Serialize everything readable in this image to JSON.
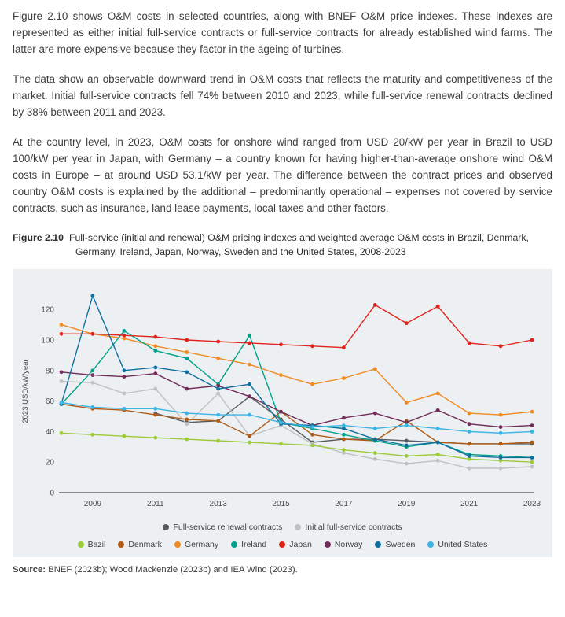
{
  "page": {
    "paragraphs": [
      "Figure 2.10 shows O&M costs in selected countries, along with BNEF O&M price indexes. These indexes are represented as either initial full-service contracts or full-service contracts for already established wind farms. The latter are more expensive because they factor in the ageing of turbines.",
      "The data show an observable downward trend in O&M costs that reflects the maturity and competitiveness of the market. Initial full-service contracts fell 74% between 2010 and 2023, while full-service renewal contracts declined by 38% between 2011 and 2023.",
      "At the country level, in 2023, O&M costs for onshore wind ranged from USD 20/kW per year in Brazil to USD 100/kW per year in Japan, with Germany – a country known for having higher-than-average onshore wind O&M costs in Europe – at around USD 53.1/kW per year. The difference between the contract prices and observed country O&M costs is explained by the additional – predominantly operational – expenses not covered by service contracts, such as insurance, land lease payments, local taxes and other factors."
    ],
    "figure_label": "Figure 2.10",
    "figure_caption": "Full-service (initial and renewal) O&M pricing indexes and weighted average O&M costs in Brazil, Denmark, Germany, Ireland, Japan, Norway, Sweden and the United States, 2008-2023",
    "source_label": "Source:",
    "source_text": "BNEF (2023b); Wood Mackenzie (2023b) and IEA Wind (2023)."
  },
  "chart_data": {
    "type": "line",
    "title": "",
    "xlabel": "",
    "ylabel": "2023 USD/kW/year",
    "x": [
      2008,
      2009,
      2010,
      2011,
      2012,
      2013,
      2014,
      2015,
      2016,
      2017,
      2018,
      2019,
      2020,
      2021,
      2022,
      2023
    ],
    "x_ticks": [
      2009,
      2011,
      2013,
      2015,
      2017,
      2019,
      2021,
      2023
    ],
    "y_ticks": [
      0,
      20,
      40,
      60,
      80,
      100,
      120
    ],
    "ylim": [
      0,
      133
    ],
    "grid": false,
    "legend_position": "bottom",
    "panel_bg": "#ecf0f3",
    "series": [
      {
        "name": "Full-service renewal contracts",
        "label": "Full-service renewal contracts",
        "color": "#595a5c",
        "legend_row": 1,
        "values": [
          null,
          null,
          null,
          52,
          46,
          47,
          63,
          48,
          33,
          35,
          35,
          34,
          33,
          32,
          32,
          32
        ]
      },
      {
        "name": "Initial full-service contracts",
        "label": "Initial full-service contracts",
        "color": "#bfc1c3",
        "legend_row": 1,
        "values": [
          73,
          72,
          65,
          68,
          45,
          65,
          37,
          44,
          32,
          26,
          22,
          19,
          21,
          16,
          16,
          17
        ]
      },
      {
        "name": "Brazil",
        "label": "Bazil",
        "color": "#9dca3b",
        "legend_row": 2,
        "values": [
          39,
          38,
          37,
          36,
          35,
          34,
          33,
          32,
          31,
          28,
          26,
          24,
          25,
          22,
          21,
          20
        ]
      },
      {
        "name": "Denmark",
        "label": "Denmark",
        "color": "#b05c17",
        "legend_row": 2,
        "values": [
          58,
          55,
          54,
          51,
          48,
          47,
          37,
          53,
          38,
          35,
          34,
          47,
          33,
          32,
          32,
          33
        ]
      },
      {
        "name": "Germany",
        "label": "Germany",
        "color": "#f18a21",
        "legend_row": 2,
        "values": [
          110,
          104,
          101,
          96,
          92,
          88,
          84,
          77,
          71,
          75,
          81,
          59,
          65,
          52,
          51,
          53
        ]
      },
      {
        "name": "Ireland",
        "label": "Ireland",
        "color": "#00a189",
        "legend_row": 2,
        "values": [
          58,
          80,
          106,
          93,
          88,
          71,
          103,
          46,
          42,
          38,
          34,
          30,
          33,
          25,
          24,
          23
        ]
      },
      {
        "name": "Japan",
        "label": "Japan",
        "color": "#e2231a",
        "legend_row": 2,
        "values": [
          104,
          104,
          103,
          102,
          100,
          99,
          98,
          97,
          96,
          95,
          123,
          111,
          122,
          98,
          96,
          100
        ]
      },
      {
        "name": "Norway",
        "label": "Norway",
        "color": "#722b58",
        "legend_row": 2,
        "values": [
          79,
          77,
          76,
          78,
          68,
          70,
          63,
          53,
          44,
          49,
          52,
          46,
          54,
          45,
          43,
          44
        ]
      },
      {
        "name": "Sweden",
        "label": "Sweden",
        "color": "#0f6f9e",
        "legend_row": 2,
        "values": [
          58,
          129,
          80,
          82,
          79,
          68,
          71,
          45,
          44,
          42,
          35,
          31,
          33,
          24,
          23,
          23
        ]
      },
      {
        "name": "United States",
        "label": "United States",
        "color": "#3cb4e5",
        "legend_row": 2,
        "values": [
          59,
          56,
          55,
          55,
          52,
          51,
          51,
          46,
          43,
          44,
          42,
          44,
          42,
          40,
          39,
          40
        ]
      }
    ]
  }
}
